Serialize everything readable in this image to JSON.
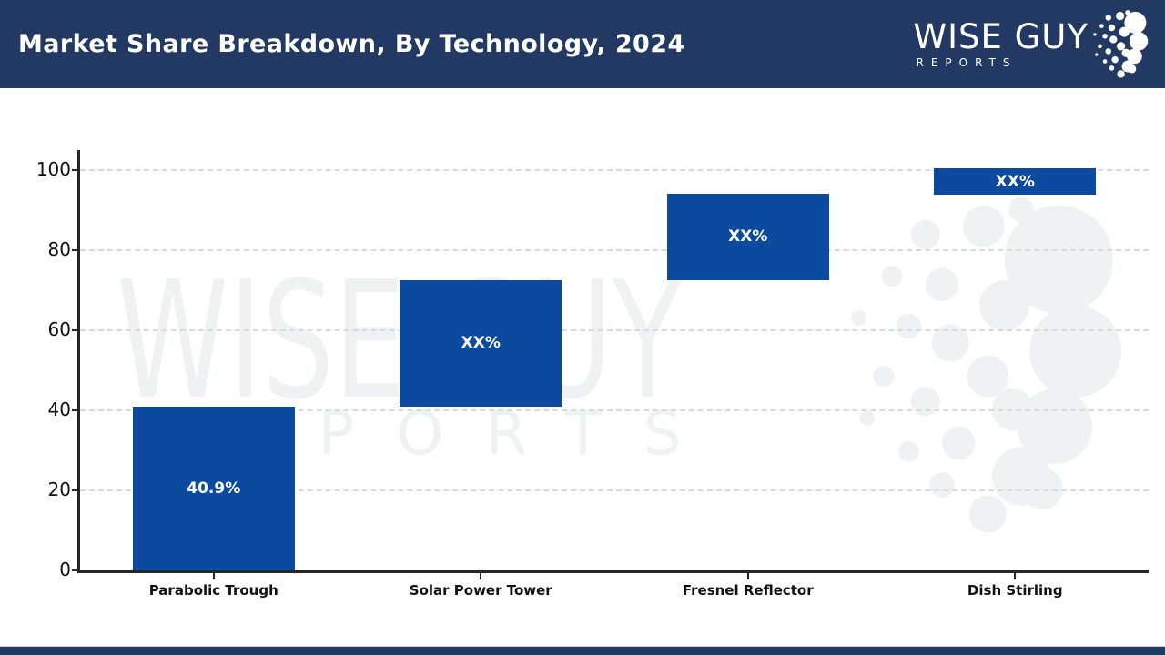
{
  "header": {
    "title": "Market Share Breakdown, By Technology, 2024",
    "logo_line1": "WISE GUY",
    "logo_line2": "REPORTS"
  },
  "watermark": {
    "line1": "WISE GUY",
    "line2": "REPORTS"
  },
  "colors": {
    "navy": "#223a63",
    "bar_blue": "#0b4a9f",
    "grid": "#dadada",
    "watermark_gray": "#eff1f3",
    "axis": "#262626"
  },
  "chart_data": {
    "type": "bar",
    "subtype": "waterfall",
    "title": "Market Share Breakdown, By Technology, 2024",
    "categories": [
      "Parabolic Trough",
      "Solar Power Tower",
      "Fresnel Reflector",
      "Dish Stirling"
    ],
    "segments": [
      {
        "label": "Parabolic Trough",
        "start": 0,
        "end": 40.9,
        "value_label": "40.9%"
      },
      {
        "label": "Solar Power Tower",
        "start": 41.0,
        "end": 72.5,
        "value_label": "XX%"
      },
      {
        "label": "Fresnel Reflector",
        "start": 72.6,
        "end": 94.0,
        "value_label": "XX%"
      },
      {
        "label": "Dish Stirling",
        "start": 93.8,
        "end": 100.5,
        "value_label": "XX%"
      }
    ],
    "yticks": [
      0,
      20,
      40,
      60,
      80,
      100
    ],
    "ylim": [
      0,
      105
    ],
    "grid": "horizontal dashed",
    "legend": "none"
  }
}
